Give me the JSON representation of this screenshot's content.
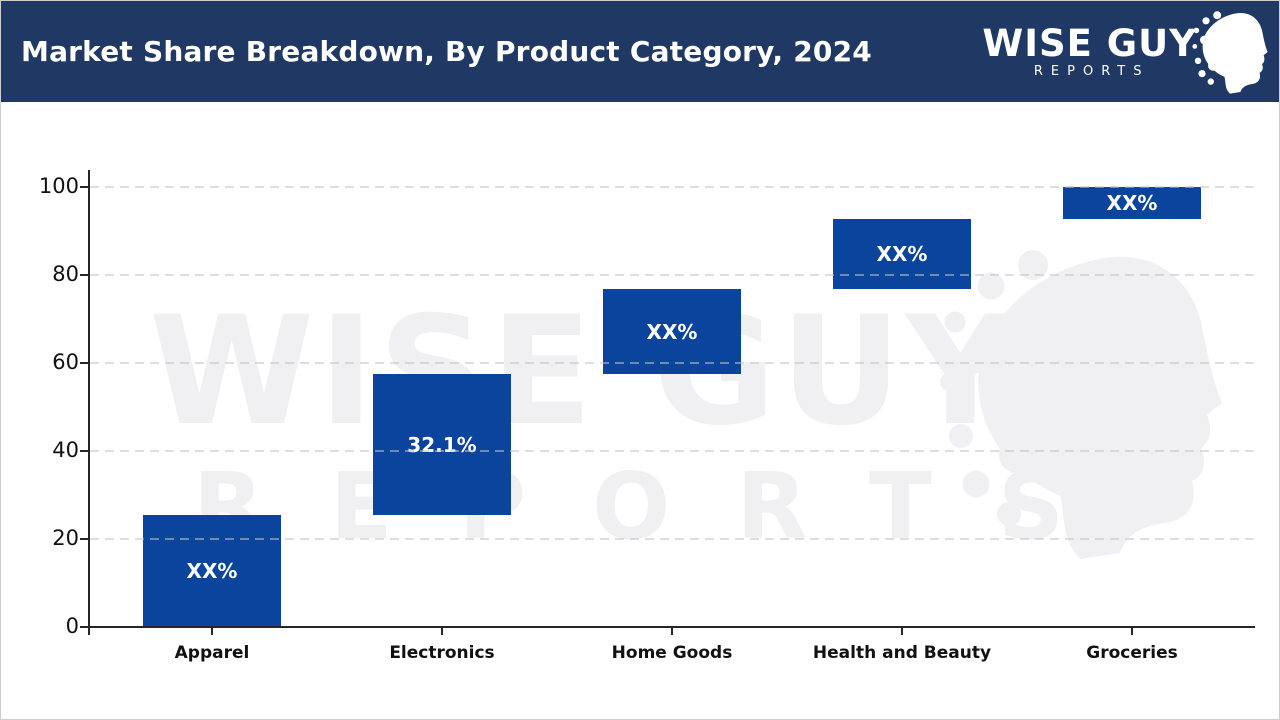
{
  "header": {
    "title": "Market Share Breakdown, By Product Category, 2024",
    "logo": {
      "line1": "WISE GUY",
      "line2": "REPORTS"
    }
  },
  "watermark": {
    "line1": "WISE GUY",
    "line2": "REPORTS"
  },
  "colors": {
    "header_bg": "#1f3864",
    "bar": "#0a449c",
    "bar_label": "#ffffff",
    "axis": "#262626",
    "grid": "#e3e3e3",
    "watermark": "#f0f0f2",
    "border": "#cfcfcf"
  },
  "chart_data": {
    "type": "bar",
    "subtype": "waterfall",
    "title": "Market Share Breakdown, By Product Category, 2024",
    "xlabel": "",
    "ylabel": "",
    "categories": [
      "Apparel",
      "Electronics",
      "Home Goods",
      "Health and Beauty",
      "Groceries"
    ],
    "segments": [
      {
        "category": "Apparel",
        "start": 0,
        "end": 25.4,
        "value": 25.4,
        "label": "XX%"
      },
      {
        "category": "Electronics",
        "start": 25.4,
        "end": 57.5,
        "value": 32.1,
        "label": "32.1%"
      },
      {
        "category": "Home Goods",
        "start": 57.5,
        "end": 76.8,
        "value": 19.3,
        "label": "XX%"
      },
      {
        "category": "Health and Beauty",
        "start": 76.8,
        "end": 92.7,
        "value": 15.9,
        "label": "XX%"
      },
      {
        "category": "Groceries",
        "start": 92.7,
        "end": 100.0,
        "value": 7.3,
        "label": "XX%"
      }
    ],
    "yticks": [
      0,
      20,
      40,
      60,
      80,
      100
    ],
    "ylim": [
      0,
      104
    ],
    "grid": "dashed-horizontal",
    "legend": "none"
  }
}
